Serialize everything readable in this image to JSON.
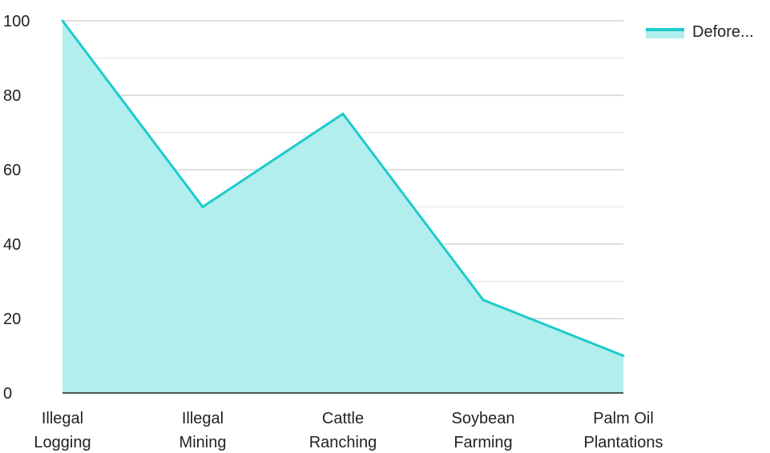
{
  "chart_data": {
    "type": "area",
    "categories": [
      [
        "Illegal",
        "Logging"
      ],
      [
        "Illegal",
        "Mining"
      ],
      [
        "Cattle",
        "Ranching"
      ],
      [
        "Soybean",
        "Farming"
      ],
      [
        "Palm Oil",
        "Plantations"
      ]
    ],
    "series": [
      {
        "name": "Defore...",
        "values": [
          100,
          50,
          75,
          25,
          10
        ]
      }
    ],
    "ylim": [
      0,
      100
    ],
    "yticks": [
      "0",
      "20",
      "40",
      "60",
      "80",
      "100"
    ],
    "grid": true,
    "legend": "top-right",
    "colors": {
      "line": "#1ECBCB",
      "fill": "#B2EEEE",
      "grid_major": "#BBBBBB",
      "grid_minor": "#E4E4E4",
      "axis": "#222222"
    }
  }
}
